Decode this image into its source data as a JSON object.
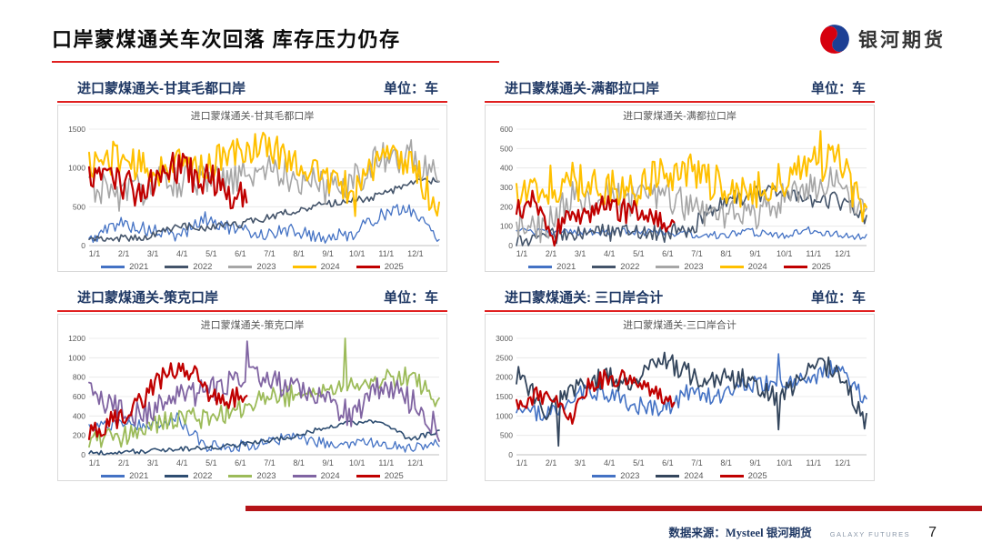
{
  "page": {
    "title": "口岸蒙煤通关车次回落 库存压力仍存",
    "page_number": "7",
    "brand": {
      "logo_text": "银河期货",
      "brand_caps": "GALAXY FUTURES"
    },
    "footer": {
      "source": "数据来源：Mysteel 银河期货"
    }
  },
  "colors": {
    "accent_red": "#e02020",
    "header_navy": "#1f3864",
    "footer_bar_red": "#b51418"
  },
  "charts": [
    {
      "header_title": "进口蒙煤通关-甘其毛都口岸",
      "unit_label": "单位：车",
      "chart_data": {
        "type": "line",
        "title": "进口蒙煤通关-甘其毛都口岸",
        "x_ticks": [
          "1/1",
          "2/1",
          "3/1",
          "4/1",
          "5/1",
          "6/1",
          "7/1",
          "8/1",
          "9/1",
          "10/1",
          "11/1",
          "12/1"
        ],
        "ylim": [
          0,
          1500
        ],
        "yticks": [
          0,
          500,
          1000,
          1500
        ],
        "legend_position": "bottom",
        "series": [
          {
            "name": "2021",
            "color": "#4472c4",
            "width": 1.3,
            "noise": 90,
            "span": [
              0,
              1
            ],
            "anchors": [
              60,
              300,
              200,
              120,
              350,
              200,
              150,
              200,
              100,
              150,
              400,
              480,
              100
            ]
          },
          {
            "name": "2022",
            "color": "#44546a",
            "width": 1.6,
            "noise": 50,
            "span": [
              0,
              1
            ],
            "anchors": [
              90,
              95,
              100,
              250,
              230,
              260,
              350,
              450,
              520,
              580,
              640,
              800,
              860
            ]
          },
          {
            "name": "2023",
            "color": "#a6a6a6",
            "width": 1.6,
            "noise": 230,
            "span": [
              0,
              1
            ],
            "anchors": [
              800,
              650,
              750,
              850,
              800,
              850,
              1000,
              900,
              750,
              850,
              1100,
              1150,
              900
            ]
          },
          {
            "name": "2024",
            "color": "#ffc000",
            "width": 2,
            "noise": 220,
            "span": [
              0,
              1
            ],
            "anchors": [
              1050,
              1150,
              950,
              1050,
              1000,
              1200,
              1300,
              1100,
              900,
              700,
              1150,
              1100,
              430
            ],
            "spikes": [
              [
                0.76,
                380
              ]
            ]
          },
          {
            "name": "2025",
            "color": "#c00000",
            "width": 2.2,
            "noise": 230,
            "span": [
              0,
              0.45
            ],
            "anchors": [
              900,
              1000,
              750,
              700,
              950,
              1000,
              900,
              850,
              700,
              620
            ]
          }
        ]
      }
    },
    {
      "header_title": "进口蒙煤通关-满都拉口岸",
      "unit_label": "单位：车",
      "chart_data": {
        "type": "line",
        "title": "进口蒙煤通关-满都拉口岸",
        "x_ticks": [
          "1/1",
          "2/1",
          "3/1",
          "4/1",
          "5/1",
          "6/1",
          "7/1",
          "8/1",
          "9/1",
          "10/1",
          "11/1",
          "12/1"
        ],
        "ylim": [
          0,
          600
        ],
        "yticks": [
          0,
          100,
          200,
          300,
          400,
          500,
          600
        ],
        "legend_position": "bottom",
        "series": [
          {
            "name": "2021",
            "color": "#4472c4",
            "width": 1.3,
            "noise": 20,
            "span": [
              0,
              1
            ],
            "anchors": [
              70,
              70,
              70,
              70,
              70,
              70,
              60,
              50,
              70,
              50,
              80,
              60,
              40
            ]
          },
          {
            "name": "2022",
            "color": "#44546a",
            "width": 1.6,
            "noise": 45,
            "span": [
              0,
              1
            ],
            "anchors": [
              5,
              45,
              60,
              65,
              70,
              60,
              90,
              230,
              260,
              270,
              240,
              230,
              150
            ]
          },
          {
            "name": "2023",
            "color": "#a6a6a6",
            "width": 1.6,
            "noise": 85,
            "span": [
              0,
              1
            ],
            "anchors": [
              130,
              90,
              260,
              250,
              230,
              260,
              200,
              160,
              130,
              230,
              290,
              330,
              160
            ]
          },
          {
            "name": "2024",
            "color": "#ffc000",
            "width": 2,
            "noise": 100,
            "span": [
              0,
              1
            ],
            "anchors": [
              260,
              310,
              330,
              300,
              290,
              360,
              380,
              310,
              260,
              330,
              420,
              440,
              170
            ],
            "spikes": [
              [
                0.87,
                590
              ]
            ]
          },
          {
            "name": "2025",
            "color": "#c00000",
            "width": 2.2,
            "noise": 70,
            "span": [
              0,
              0.45
            ],
            "anchors": [
              160,
              290,
              40,
              130,
              170,
              210,
              190,
              160,
              130,
              110
            ]
          }
        ]
      }
    },
    {
      "header_title": "进口蒙煤通关-策克口岸",
      "unit_label": "单位：车",
      "chart_data": {
        "type": "line",
        "title": "进口蒙煤通关-策克口岸",
        "x_ticks": [
          "1/1",
          "2/1",
          "3/1",
          "4/1",
          "5/1",
          "6/1",
          "7/1",
          "8/1",
          "9/1",
          "10/1",
          "11/1",
          "12/1"
        ],
        "ylim": [
          0,
          1200
        ],
        "yticks": [
          0,
          200,
          400,
          600,
          800,
          1000,
          1200
        ],
        "legend_position": "bottom",
        "series": [
          {
            "name": "2021",
            "color": "#4472c4",
            "width": 1.3,
            "noise": 60,
            "span": [
              0,
              1
            ],
            "anchors": [
              260,
              330,
              300,
              380,
              90,
              90,
              110,
              200,
              120,
              100,
              120,
              70,
              130
            ]
          },
          {
            "name": "2022",
            "color": "#2e4d71",
            "width": 1.6,
            "noise": 25,
            "span": [
              0,
              1
            ],
            "anchors": [
              15,
              30,
              40,
              55,
              70,
              100,
              140,
              190,
              270,
              330,
              340,
              160,
              240
            ]
          },
          {
            "name": "2023",
            "color": "#9cbb59",
            "width": 1.8,
            "noise": 110,
            "span": [
              0,
              1
            ],
            "anchors": [
              190,
              160,
              290,
              390,
              380,
              460,
              600,
              610,
              660,
              700,
              760,
              810,
              560
            ],
            "spikes": [
              [
                0.73,
                1200
              ]
            ]
          },
          {
            "name": "2024",
            "color": "#8064a2",
            "width": 1.8,
            "noise": 140,
            "span": [
              0,
              1
            ],
            "anchors": [
              640,
              460,
              430,
              610,
              660,
              750,
              800,
              660,
              560,
              420,
              720,
              560,
              260
            ],
            "spikes": [
              [
                0.45,
                1170
              ]
            ]
          },
          {
            "name": "2025",
            "color": "#c00000",
            "width": 2.2,
            "noise": 110,
            "span": [
              0,
              0.45
            ],
            "anchors": [
              210,
              330,
              410,
              560,
              760,
              900,
              840,
              610,
              560,
              640
            ]
          }
        ]
      }
    },
    {
      "header_title": "进口蒙煤通关: 三口岸合计",
      "unit_label": "单位：车",
      "chart_data": {
        "type": "line",
        "title": "进口蒙煤通关-三口岸合计",
        "x_ticks": [
          "1/1",
          "2/1",
          "3/1",
          "4/1",
          "5/1",
          "6/1",
          "7/1",
          "8/1",
          "9/1",
          "10/1",
          "11/1",
          "12/1"
        ],
        "ylim": [
          0,
          3000
        ],
        "yticks": [
          0,
          500,
          1000,
          1500,
          2000,
          2500,
          3000
        ],
        "legend_position": "bottom",
        "series": [
          {
            "name": "2023",
            "color": "#4472c4",
            "width": 1.6,
            "noise": 240,
            "span": [
              0,
              1
            ],
            "anchors": [
              1100,
              1000,
              1550,
              1650,
              1300,
              1150,
              1650,
              1450,
              1850,
              1800,
              1950,
              2300,
              1350
            ],
            "spikes": [
              [
                0.75,
                2600
              ]
            ]
          },
          {
            "name": "2024",
            "color": "#33455c",
            "width": 1.8,
            "noise": 280,
            "span": [
              0,
              1
            ],
            "anchors": [
              2100,
              1100,
              1750,
              2000,
              1850,
              2500,
              2050,
              1950,
              2000,
              1350,
              2300,
              2250,
              850
            ],
            "spikes": [
              [
                0.12,
                230
              ],
              [
                0.75,
                650
              ]
            ]
          },
          {
            "name": "2025",
            "color": "#c00000",
            "width": 2.2,
            "noise": 240,
            "span": [
              0,
              0.45
            ],
            "anchors": [
              1200,
              1500,
              1550,
              800,
              1700,
              1950,
              2000,
              1900,
              1550,
              1450
            ]
          }
        ]
      }
    }
  ]
}
